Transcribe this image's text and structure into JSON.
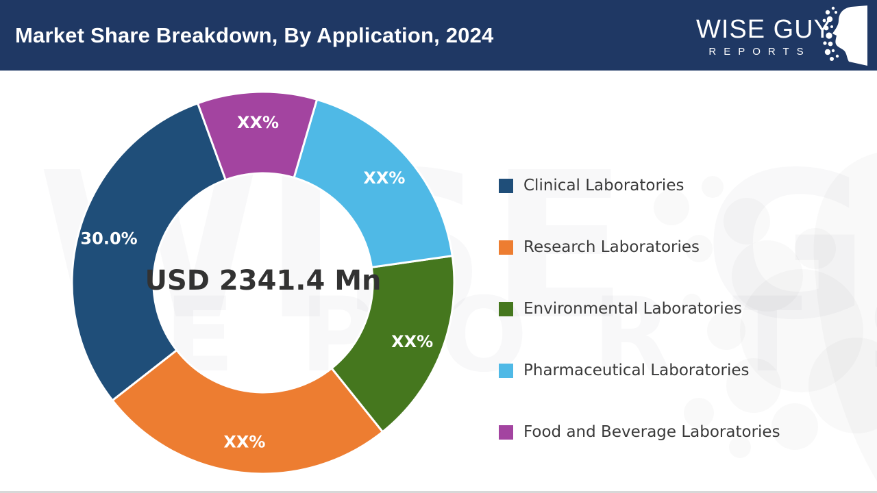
{
  "header": {
    "title": "Market Share Breakdown, By Application, 2024",
    "bg_color": "#1F3864",
    "logo": {
      "line1": "WISE GUY",
      "line2": "REPORTS"
    }
  },
  "watermark": {
    "line1": "WISE GU",
    "line2": "EPORTS"
  },
  "chart_data": {
    "type": "pie",
    "subtype": "donut",
    "title": "Market Share Breakdown, By Application, 2024",
    "center_label": "USD 2341.4 Mn",
    "legend_position": "right",
    "start_angle_deg_clockwise_from_top": 340,
    "direction": "counterclockwise",
    "segments": [
      {
        "label": "Clinical Laboratories",
        "percent": 30.0,
        "value_label": "30.0%",
        "color": "#1F4E79"
      },
      {
        "label": "Research Laboratories",
        "percent": 25.2,
        "value_label": "XX%",
        "color": "#ED7D31"
      },
      {
        "label": "Environmental Laboratories",
        "percent": 16.5,
        "value_label": "XX%",
        "color": "#45771E"
      },
      {
        "label": "Pharmaceutical Laboratories",
        "percent": 18.2,
        "value_label": "XX%",
        "color": "#4FB9E6"
      },
      {
        "label": "Food and Beverage Laboratories",
        "percent": 10.1,
        "value_label": "XX%",
        "color": "#A344A0"
      }
    ]
  }
}
